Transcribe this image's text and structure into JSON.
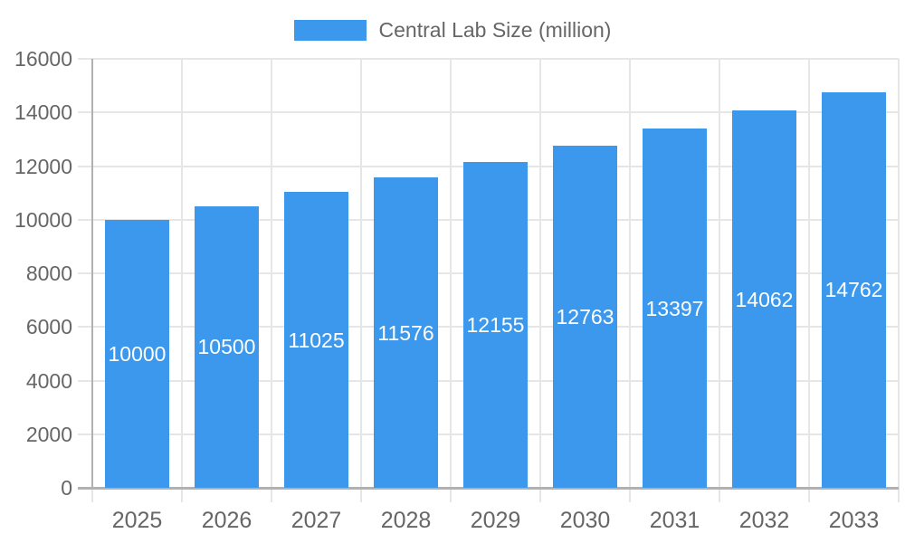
{
  "chart": {
    "legend_label": "Central Lab Size (million)"
  },
  "colors": {
    "bar": "#3b98ec",
    "grid": "#e6e6e6",
    "axis": "#b1b1b1",
    "tick_text": "#666666",
    "value_label_text": "#ffffff",
    "background": "#ffffff"
  },
  "chart_data": {
    "type": "bar",
    "title": "",
    "categories": [
      "2025",
      "2026",
      "2027",
      "2028",
      "2029",
      "2030",
      "2031",
      "2032",
      "2033"
    ],
    "series": [
      {
        "name": "Central Lab Size (million)",
        "values": [
          10000,
          10500,
          11025,
          11576,
          12155,
          12763,
          13397,
          14062,
          14762
        ],
        "color": "#3b98ec"
      }
    ],
    "value_labels": [
      "10000",
      "10500",
      "11025",
      "11576",
      "12155",
      "12763",
      "13397",
      "14062",
      "14762"
    ],
    "value_label_position": "inside-center",
    "xlabel": "",
    "ylabel": "",
    "ylim": [
      0,
      16000
    ],
    "yticks": [
      0,
      2000,
      4000,
      6000,
      8000,
      10000,
      12000,
      14000,
      16000
    ],
    "ytick_labels": [
      "0",
      "2000",
      "4000",
      "6000",
      "8000",
      "10000",
      "12000",
      "14000",
      "16000"
    ],
    "grid": true,
    "legend_position": "top-center"
  }
}
